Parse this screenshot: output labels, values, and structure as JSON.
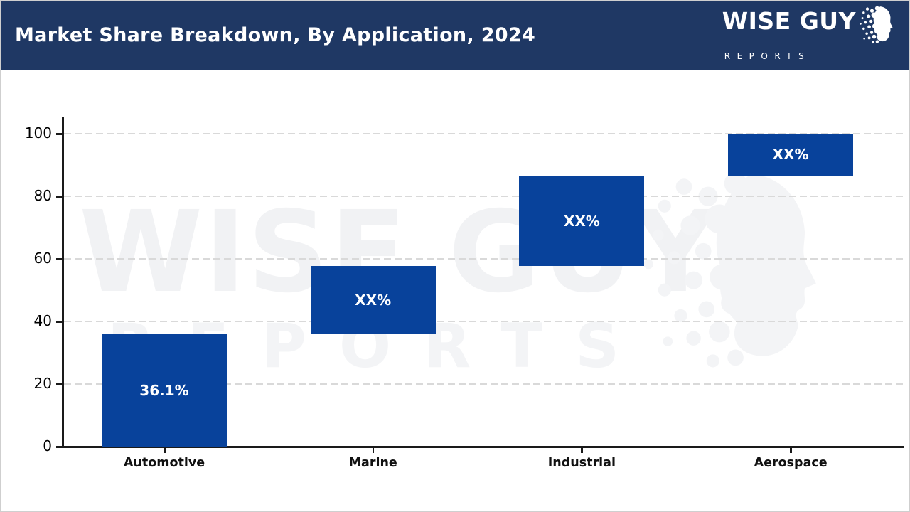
{
  "header": {
    "title": "Market Share Breakdown, By Application, 2024",
    "bg_color": "#1f3864",
    "logo": {
      "wordmark": "WISE GUY",
      "subtext": "REPORTS",
      "icon": "dotted-face-profile"
    }
  },
  "watermark": {
    "wordmark": "WISE GUY",
    "subtext": "REPORTS",
    "icon": "dotted-face-profile"
  },
  "chart_data": {
    "type": "bar",
    "subtype": "waterfall",
    "title": "Market Share Breakdown, By Application, 2024",
    "categories": [
      "Automotive",
      "Marine",
      "Industrial",
      "Aerospace"
    ],
    "series": [
      {
        "name": "Market share (%)",
        "segments": [
          {
            "category": "Automotive",
            "start": 0,
            "end": 36.1,
            "label": "36.1%"
          },
          {
            "category": "Marine",
            "start": 36.1,
            "end": 57.7,
            "label": "XX%"
          },
          {
            "category": "Industrial",
            "start": 57.7,
            "end": 86.6,
            "label": "XX%"
          },
          {
            "category": "Aerospace",
            "start": 86.6,
            "end": 100,
            "label": "XX%"
          }
        ]
      }
    ],
    "xlabel": "",
    "ylabel": "",
    "ylim": [
      0,
      100
    ],
    "yticks": [
      0,
      20,
      40,
      60,
      80,
      100
    ],
    "grid": "horizontal-dashed",
    "legend": "none",
    "colors": {
      "bar": "#08429b",
      "bar_label": "#ffffff",
      "axis": "#1a1a1a",
      "gridline": "#d9d9d9",
      "header_bg": "#1f3864",
      "header_text": "#ffffff",
      "watermark": "#f2f3f5"
    }
  }
}
